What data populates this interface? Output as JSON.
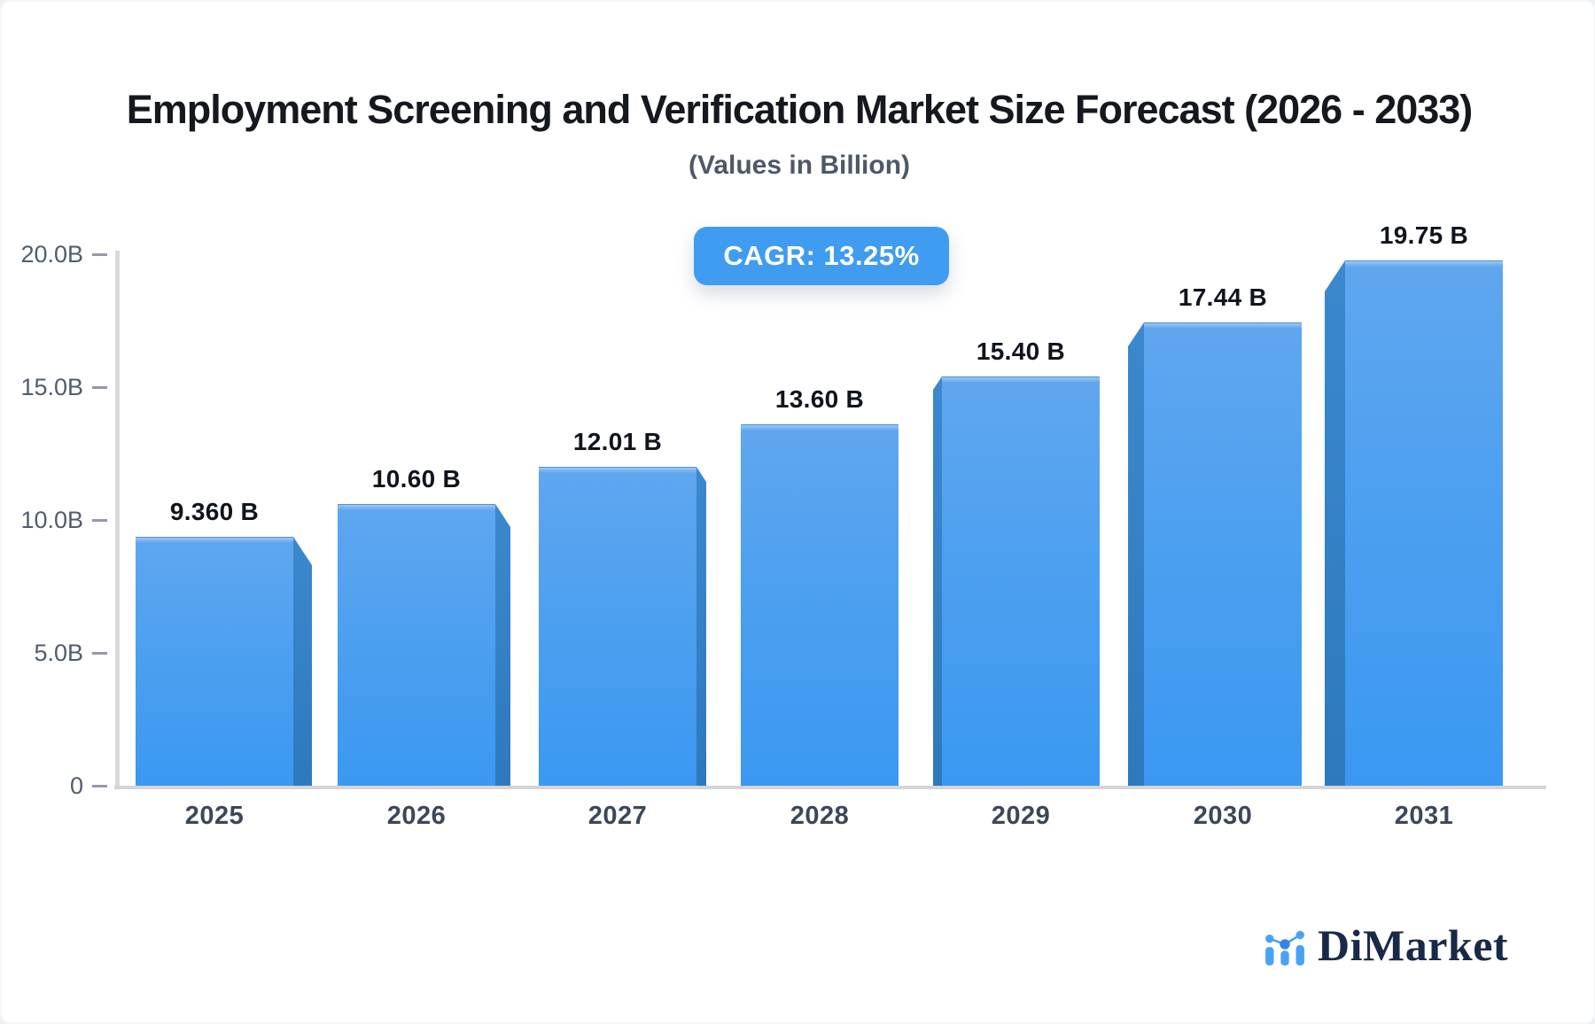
{
  "header": {
    "title": "Employment Screening and Verification Market Size Forecast (2026 - 2033)",
    "subtitle": "(Values in Billion)"
  },
  "badge": {
    "label": "CAGR: 13.25%",
    "color": "#3f9cf1"
  },
  "chart_data": {
    "type": "bar",
    "title": "Employment Screening and Verification Market Size Forecast (2026 - 2033)",
    "subtitle": "(Values in Billion)",
    "categories": [
      "2025",
      "2026",
      "2027",
      "2028",
      "2029",
      "2030",
      "2031"
    ],
    "values": [
      9.36,
      10.6,
      12.01,
      13.6,
      15.4,
      17.44,
      19.75
    ],
    "value_labels": [
      "9.360 B",
      "10.60 B",
      "12.01 B",
      "13.60 B",
      "15.40 B",
      "17.44 B",
      "19.75 B"
    ],
    "xlabel": "",
    "ylabel": "",
    "ylim": [
      0,
      20
    ],
    "yticks": [
      {
        "label": "0",
        "value": 0
      },
      {
        "label": "5.0B",
        "value": 5
      },
      {
        "label": "10.0B",
        "value": 10
      },
      {
        "label": "15.0B",
        "value": 15
      },
      {
        "label": "20.0B",
        "value": 20
      }
    ],
    "grid": false,
    "legend": false,
    "bar_color_top": "#60a6ef",
    "bar_color_bottom": "#3b98f1",
    "bar_side_color": "#2e79bd",
    "style": "3d-perspective-bars"
  },
  "footer": {
    "logo_text": "DiMarket",
    "logo_text_color": "#1a2947",
    "logo_icon": "mini-bar-chart-with-trend-dots",
    "logo_icon_color": "#4aa2f6"
  }
}
